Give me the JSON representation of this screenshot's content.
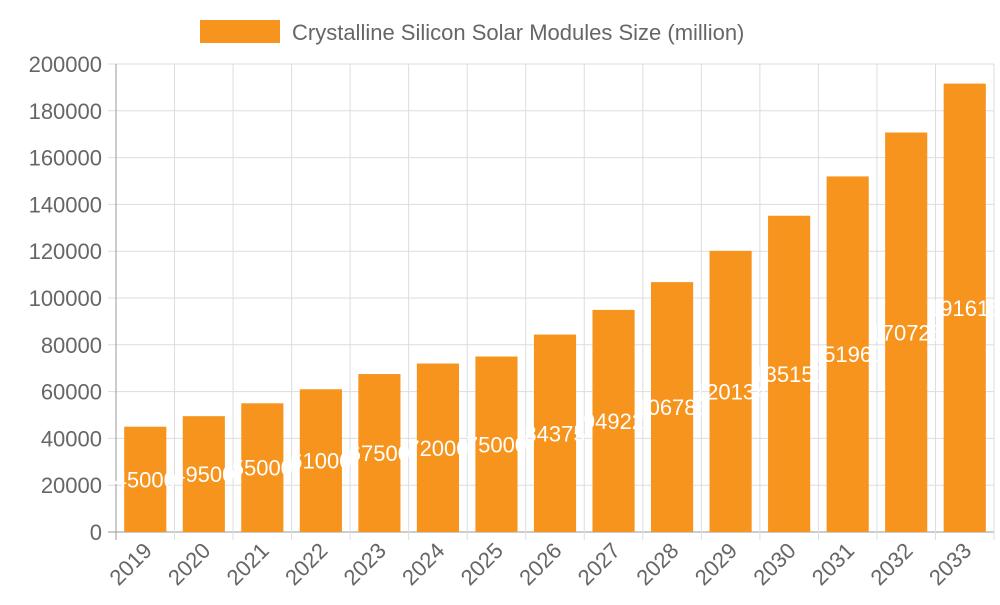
{
  "chart_data": {
    "type": "bar",
    "title": "",
    "xlabel": "",
    "ylabel": "",
    "legend": {
      "position": "top",
      "entries": [
        "Crystalline Silicon Solar Modules Size (million)"
      ]
    },
    "categories": [
      "2019",
      "2020",
      "2021",
      "2022",
      "2023",
      "2024",
      "2025",
      "2026",
      "2027",
      "2028",
      "2029",
      "2030",
      "2031",
      "2032",
      "2033"
    ],
    "series": [
      {
        "name": "Crystalline Silicon Solar Modules Size (million)",
        "values": [
          45000,
          49500,
          55000,
          61000,
          67500,
          72000,
          75000,
          84375,
          94922,
          106785,
          120134,
          135151,
          151960,
          170725,
          191615
        ],
        "color": "#f7941e"
      }
    ],
    "ylim": [
      0,
      200000
    ],
    "yticks": [
      0,
      20000,
      40000,
      60000,
      80000,
      100000,
      120000,
      140000,
      160000,
      180000,
      200000
    ],
    "grid": true,
    "data_labels": true
  }
}
